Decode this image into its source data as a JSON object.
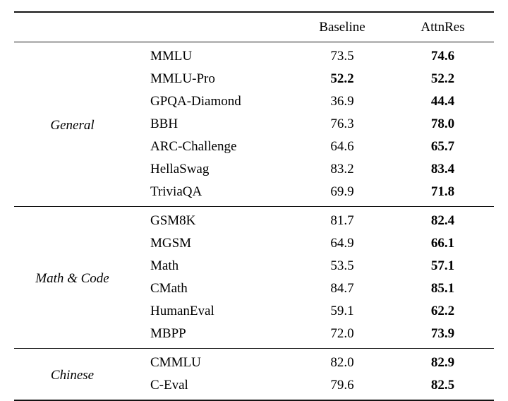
{
  "table": {
    "header": {
      "group_col": "",
      "benchmark_col": "",
      "baseline_label": "Baseline",
      "attnres_label": "AttnRes"
    },
    "groups": [
      {
        "label": "General",
        "rows": [
          {
            "name": "MMLU",
            "baseline": "73.5",
            "baseline_bold": false,
            "attnres": "74.6",
            "attnres_bold": true
          },
          {
            "name": "MMLU-Pro",
            "baseline": "52.2",
            "baseline_bold": true,
            "attnres": "52.2",
            "attnres_bold": true
          },
          {
            "name": "GPQA-Diamond",
            "baseline": "36.9",
            "baseline_bold": false,
            "attnres": "44.4",
            "attnres_bold": true
          },
          {
            "name": "BBH",
            "baseline": "76.3",
            "baseline_bold": false,
            "attnres": "78.0",
            "attnres_bold": true
          },
          {
            "name": "ARC-Challenge",
            "baseline": "64.6",
            "baseline_bold": false,
            "attnres": "65.7",
            "attnres_bold": true
          },
          {
            "name": "HellaSwag",
            "baseline": "83.2",
            "baseline_bold": false,
            "attnres": "83.4",
            "attnres_bold": true
          },
          {
            "name": "TriviaQA",
            "baseline": "69.9",
            "baseline_bold": false,
            "attnres": "71.8",
            "attnres_bold": true
          }
        ]
      },
      {
        "label": "Math & Code",
        "rows": [
          {
            "name": "GSM8K",
            "baseline": "81.7",
            "baseline_bold": false,
            "attnres": "82.4",
            "attnres_bold": true
          },
          {
            "name": "MGSM",
            "baseline": "64.9",
            "baseline_bold": false,
            "attnres": "66.1",
            "attnres_bold": true
          },
          {
            "name": "Math",
            "baseline": "53.5",
            "baseline_bold": false,
            "attnres": "57.1",
            "attnres_bold": true
          },
          {
            "name": "CMath",
            "baseline": "84.7",
            "baseline_bold": false,
            "attnres": "85.1",
            "attnres_bold": true
          },
          {
            "name": "HumanEval",
            "baseline": "59.1",
            "baseline_bold": false,
            "attnres": "62.2",
            "attnres_bold": true
          },
          {
            "name": "MBPP",
            "baseline": "72.0",
            "baseline_bold": false,
            "attnres": "73.9",
            "attnres_bold": true
          }
        ]
      },
      {
        "label": "Chinese",
        "rows": [
          {
            "name": "CMMLU",
            "baseline": "82.0",
            "baseline_bold": false,
            "attnres": "82.9",
            "attnres_bold": true
          },
          {
            "name": "C-Eval",
            "baseline": "79.6",
            "baseline_bold": false,
            "attnres": "82.5",
            "attnres_bold": true
          }
        ]
      }
    ]
  }
}
